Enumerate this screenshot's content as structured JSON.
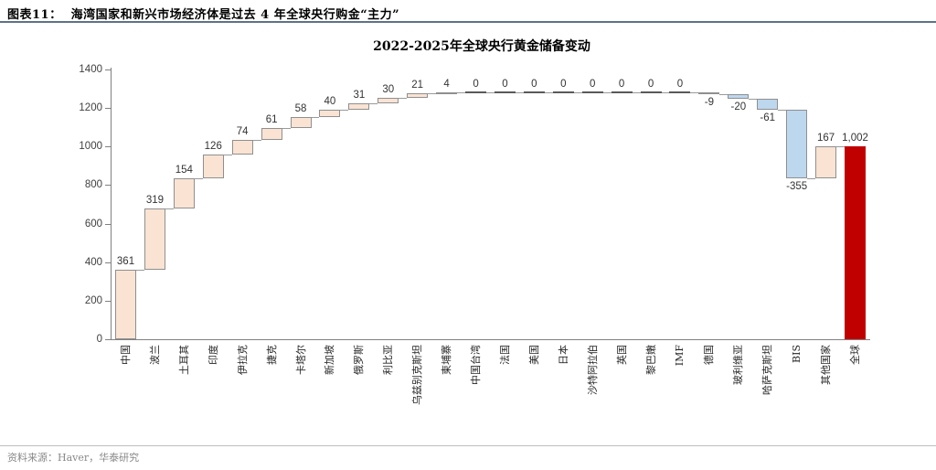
{
  "figure": {
    "label": "图表11：",
    "title": "海湾国家和新兴市场经济体是过去 4 年全球央行购金“主力”"
  },
  "chart_data": {
    "type": "bar",
    "subtype": "waterfall",
    "title": "2022-2025年全球央行黄金储备变动",
    "categories": [
      "中国",
      "波兰",
      "土耳其",
      "印度",
      "伊拉克",
      "捷克",
      "卡塔尔",
      "新加坡",
      "俄罗斯",
      "利比亚",
      "乌兹别克斯坦",
      "柬埔寨",
      "中国台湾",
      "法国",
      "美国",
      "日本",
      "沙特阿拉伯",
      "英国",
      "黎巴嫩",
      "IMF",
      "德国",
      "玻利维亚",
      "哈萨克斯坦",
      "BIS",
      "其他国家",
      "全球"
    ],
    "values": [
      361,
      319,
      154,
      126,
      74,
      61,
      58,
      40,
      31,
      30,
      21,
      4,
      0,
      0,
      0,
      0,
      0,
      0,
      0,
      0,
      -9,
      -20,
      -61,
      -355,
      167,
      1002
    ],
    "value_labels": [
      "361",
      "319",
      "154",
      "126",
      "74",
      "61",
      "58",
      "40",
      "31",
      "30",
      "21",
      "4",
      "0",
      "0",
      "0",
      "0",
      "0",
      "0",
      "0",
      "0",
      "-9",
      "-20",
      "-61",
      "-355",
      "167",
      "1,002"
    ],
    "total_category": "全球",
    "ylim": [
      0,
      1400
    ],
    "yticks": [
      0,
      200,
      400,
      600,
      800,
      1000,
      1200,
      1400
    ],
    "grid": "off",
    "legend": "none",
    "colors": {
      "increase": "#FAE3D3",
      "decrease": "#BDD7EE",
      "total": "#C00000",
      "bar_border": "#8F8F8F",
      "zero_dash": "#595959",
      "connector": "#9A9A9A",
      "axis": "#808080"
    }
  },
  "footer": {
    "source": "资料来源：Haver，华泰研究"
  }
}
